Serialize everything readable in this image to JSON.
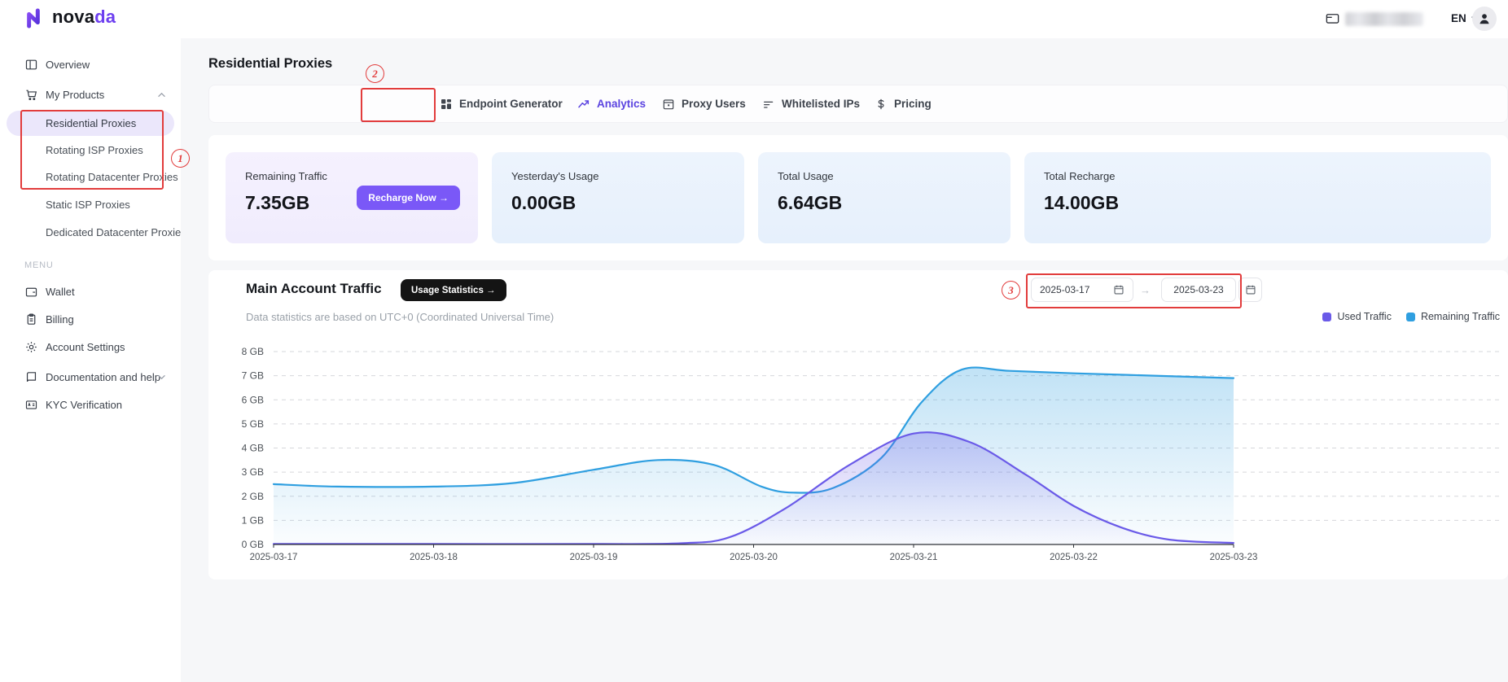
{
  "brand": {
    "wordmark_dark": "nova",
    "wordmark_accent": "da",
    "accent_color": "#6d3ff0"
  },
  "topbar": {
    "language": "EN"
  },
  "sidebar": {
    "main_items": [
      {
        "label": "Overview",
        "icon": "layout-icon"
      },
      {
        "label": "My Products",
        "icon": "cart-icon",
        "chevron": "up"
      }
    ],
    "product_items": [
      {
        "label": "Residential Proxies",
        "active": true
      },
      {
        "label": "Rotating ISP Proxies"
      },
      {
        "label": "Rotating Datacenter Proxies"
      },
      {
        "label": "Static ISP Proxies"
      },
      {
        "label": "Dedicated Datacenter Proxies"
      }
    ],
    "menu_label": "MENU",
    "menu_items": [
      {
        "label": "Wallet",
        "icon": "wallet-icon"
      },
      {
        "label": "Billing",
        "icon": "billing-icon"
      },
      {
        "label": "Account Settings",
        "icon": "gear-icon"
      },
      {
        "label": "Documentation and help",
        "icon": "docs-icon",
        "chevron": "down"
      },
      {
        "label": "KYC Verification",
        "icon": "id-card-icon"
      }
    ]
  },
  "page": {
    "title": "Residential Proxies"
  },
  "tabs": [
    {
      "label": "Endpoint Generator",
      "icon": "grid-icon",
      "active": false
    },
    {
      "label": "Analytics",
      "icon": "trend-up-icon",
      "active": true
    },
    {
      "label": "Proxy Users",
      "icon": "calendar-icon",
      "active": false
    },
    {
      "label": "Whitelisted IPs",
      "icon": "list-icon",
      "active": false
    },
    {
      "label": "Pricing",
      "icon": "dollar-icon",
      "active": false
    }
  ],
  "stats": [
    {
      "label": "Remaining Traffic",
      "value": "7.35GB",
      "button": "Recharge Now →",
      "theme": "purple"
    },
    {
      "label": "Yesterday's Usage",
      "value": "0.00GB",
      "theme": "blue"
    },
    {
      "label": "Total Usage",
      "value": "6.64GB",
      "theme": "blue"
    },
    {
      "label": "Total Recharge",
      "value": "14.00GB",
      "theme": "blue"
    }
  ],
  "traffic_section": {
    "title": "Main Account Traffic",
    "button": "Usage Statistics →",
    "subtitle": "Data statistics are based on UTC+0 (Coordinated Universal Time)",
    "date_from": "2025-03-17",
    "date_to": "2025-03-23",
    "range_separator": "→",
    "legend": [
      {
        "label": "Used Traffic",
        "color": "#6a5ae8"
      },
      {
        "label": "Remaining Traffic",
        "color": "#2f9fe0"
      }
    ]
  },
  "annotations": {
    "one": "1",
    "two": "2",
    "three": "3",
    "color": "#e23c3c"
  },
  "chart_data": {
    "type": "area",
    "title": "Main Account Traffic",
    "x_labels": [
      "2025-03-17",
      "2025-03-18",
      "2025-03-19",
      "2025-03-20",
      "2025-03-21",
      "2025-03-22",
      "2025-03-23"
    ],
    "y_ticks": [
      "0 GB",
      "1 GB",
      "2 GB",
      "3 GB",
      "4 GB",
      "5 GB",
      "6 GB",
      "7 GB",
      "8 GB"
    ],
    "ylim": [
      0,
      8
    ],
    "grid": "horizontal-dashed",
    "legend_position": "top-right",
    "series": [
      {
        "name": "Used Traffic",
        "color": "#6a5ae8",
        "values_gb": [
          0,
          0,
          0.05,
          1.2,
          4.6,
          1.1,
          0.05
        ],
        "curve": [
          [
            0,
            0.02
          ],
          [
            1,
            0.02
          ],
          [
            2,
            0.02
          ],
          [
            2.55,
            0.05
          ],
          [
            2.85,
            0.3
          ],
          [
            3.2,
            1.5
          ],
          [
            3.6,
            3.3
          ],
          [
            4.0,
            4.6
          ],
          [
            4.35,
            4.25
          ],
          [
            4.7,
            2.9
          ],
          [
            5.0,
            1.6
          ],
          [
            5.3,
            0.7
          ],
          [
            5.6,
            0.2
          ],
          [
            6,
            0.06
          ]
        ]
      },
      {
        "name": "Remaining Traffic",
        "color": "#2f9fe0",
        "values_gb": [
          2.5,
          2.4,
          3.4,
          2.15,
          7.25,
          7.05,
          6.9
        ],
        "curve": [
          [
            0,
            2.5
          ],
          [
            0.4,
            2.4
          ],
          [
            1,
            2.4
          ],
          [
            1.5,
            2.55
          ],
          [
            2,
            3.1
          ],
          [
            2.4,
            3.5
          ],
          [
            2.75,
            3.3
          ],
          [
            3.05,
            2.4
          ],
          [
            3.25,
            2.15
          ],
          [
            3.5,
            2.35
          ],
          [
            3.8,
            3.6
          ],
          [
            4.05,
            5.9
          ],
          [
            4.3,
            7.25
          ],
          [
            4.6,
            7.2
          ],
          [
            5,
            7.1
          ],
          [
            5.5,
            7.0
          ],
          [
            6,
            6.9
          ]
        ]
      }
    ]
  }
}
